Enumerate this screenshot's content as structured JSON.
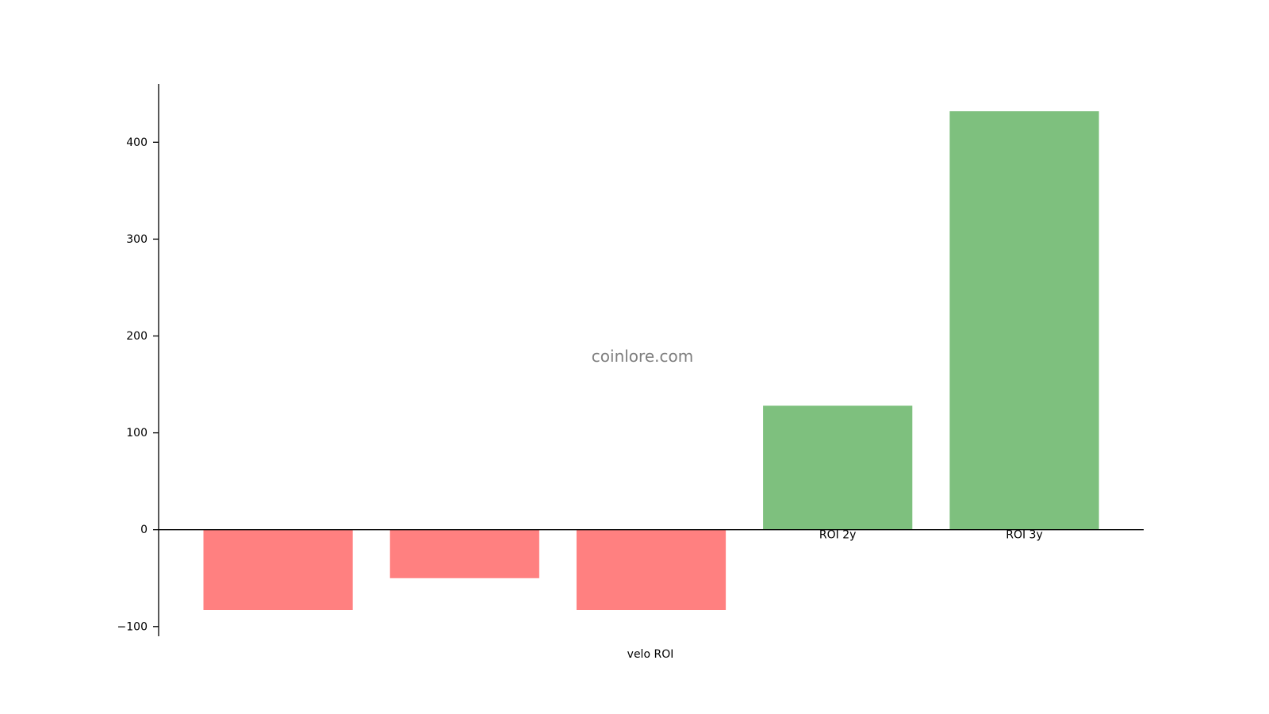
{
  "page": {
    "background_color": "#ffffff"
  },
  "chart_data": {
    "type": "bar",
    "title": "",
    "xlabel": "velo ROI",
    "ylabel": "",
    "categories": [
      "",
      "",
      "",
      "ROI 2y",
      "ROI 3y"
    ],
    "values": [
      -83,
      -50,
      -83,
      128,
      432
    ],
    "negative_color": "#ff8080",
    "positive_color": "#7ec07e",
    "yticks": [
      -100,
      0,
      100,
      200,
      300,
      400
    ],
    "ytick_labels": [
      "−100",
      "0",
      "100",
      "200",
      "300",
      "400"
    ],
    "ylim": [
      -110,
      460
    ],
    "xlim": [
      -0.64,
      4.64
    ],
    "bar_width": 0.8,
    "grid": false,
    "legend": "none",
    "axis_color": "#000000",
    "tick_label_color": "#000000",
    "watermark": {
      "text": "coinlore.com",
      "color": "#7e7e7e"
    }
  }
}
